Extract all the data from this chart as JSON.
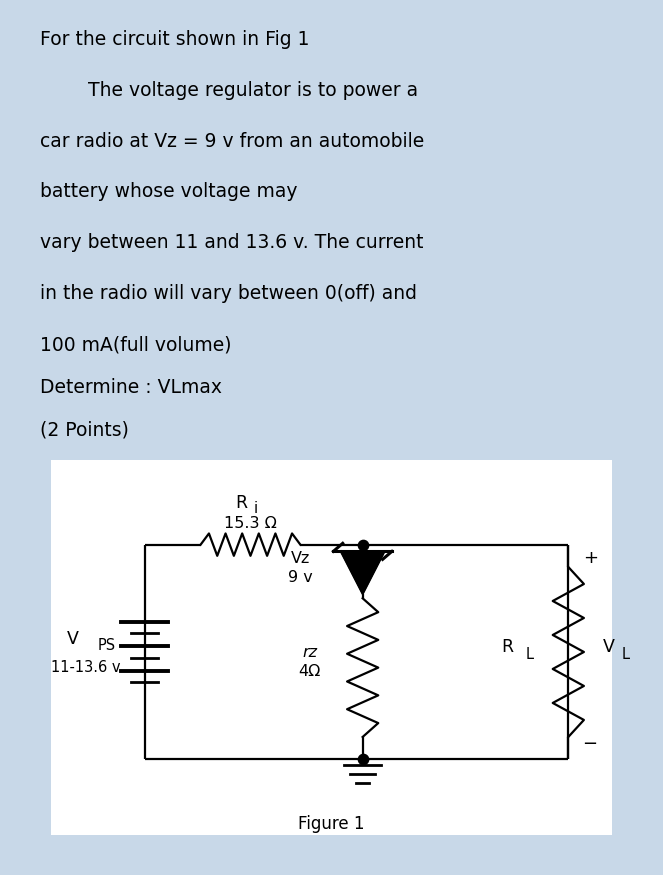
{
  "text_bg_color": "#d4e2ef",
  "circuit_bg_color": "#f2f2f2",
  "page_bg_color": "#c8d8e8",
  "title_lines": [
    "For the circuit shown in Fig 1",
    "        The voltage regulator is to power a",
    "car radio at Vz = 9 v from an automobile",
    "battery whose voltage may",
    "vary between 11 and 13.6 v. The current",
    "in the radio will vary between 0(off) and",
    "100 mA(full volume)",
    "Determine : VLmax",
    "(2 Points)"
  ],
  "fig_label": "Figure 1",
  "ri_label": "R",
  "ri_sub": "i",
  "ri_value": "15.3 Ω",
  "vz_label": "Vz",
  "vz_value": "9 v",
  "rz_label": "rz",
  "rz_value": "4Ω",
  "rl_label": "R",
  "rl_sub": "L",
  "vl_label": "V",
  "vl_sub": "L",
  "vps_label1": "V",
  "vps_sub1": "PS",
  "vps_label2": "11-13.6 v",
  "plus_sign": "+",
  "minus_sign": "−",
  "line_color": "#000000",
  "text_color": "#000000",
  "font_size_main": 13.5,
  "font_size_circuit": 11.5
}
